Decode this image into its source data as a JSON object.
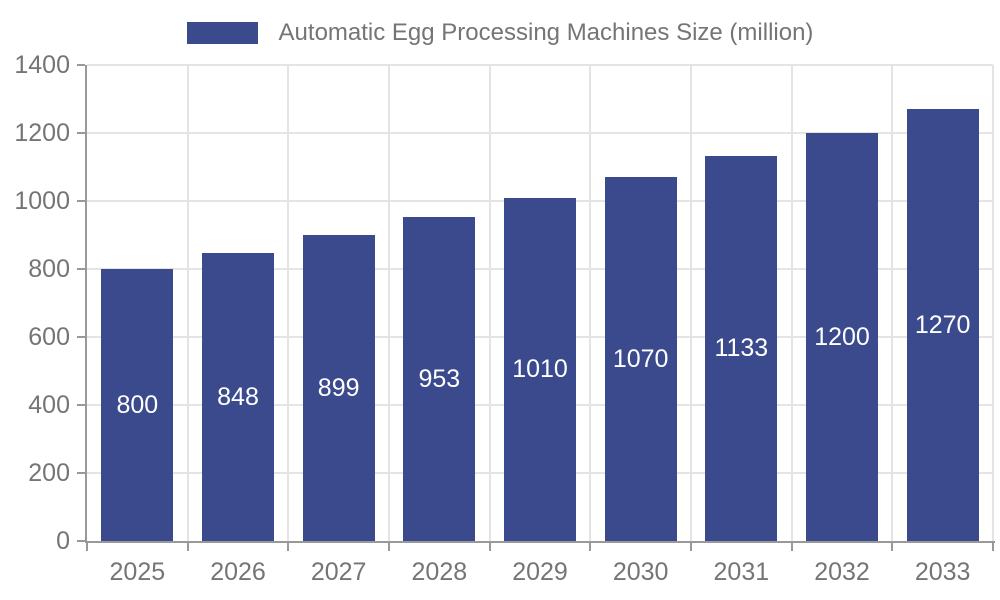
{
  "legend": {
    "label": "Automatic Egg Processing Machines Size (million)"
  },
  "chart_data": {
    "type": "bar",
    "title": "Automatic Egg Processing Machines Size (million)",
    "categories": [
      "2025",
      "2026",
      "2027",
      "2028",
      "2029",
      "2030",
      "2031",
      "2032",
      "2033"
    ],
    "values": [
      800,
      848,
      899,
      953,
      1010,
      1070,
      1133,
      1200,
      1270
    ],
    "series": [
      {
        "name": "Automatic Egg Processing Machines Size (million)",
        "values": [
          800,
          848,
          899,
          953,
          1010,
          1070,
          1133,
          1200,
          1270
        ]
      }
    ],
    "xlabel": "",
    "ylabel": "",
    "ylim": [
      0,
      1400
    ],
    "yticks": [
      0,
      200,
      400,
      600,
      800,
      1000,
      1200,
      1400
    ],
    "grid": true,
    "bar_labels": true,
    "legend_position": "top-center",
    "colors": {
      "bar": "#3A4A8C",
      "bar_label": "#FFFFFF",
      "axis_line": "#999999",
      "grid_line": "#E4E4E4",
      "text": "#757575"
    }
  }
}
